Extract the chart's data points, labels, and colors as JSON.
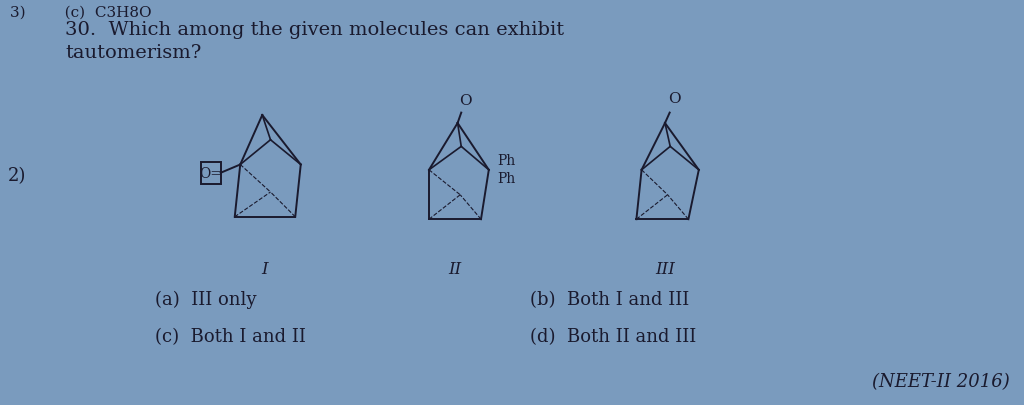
{
  "background_color": "#7a9bbe",
  "title_line1": "30.  Which among the given molecules can exhibit",
  "title_line2": "tautomerism?",
  "top_left_text": "3)        (c)  C3H8O",
  "left_margin_text": "2)",
  "molecule_labels": [
    "I",
    "II",
    "III"
  ],
  "options": [
    "(a)  III only",
    "(b)  Both I and III",
    "(c)  Both I and II",
    "(d)  Both II and III"
  ],
  "neet_ref": "(NEET-II 2016)",
  "text_color": "#1a1a2e",
  "font_size_title": 14,
  "font_size_options": 13,
  "font_size_labels": 12
}
